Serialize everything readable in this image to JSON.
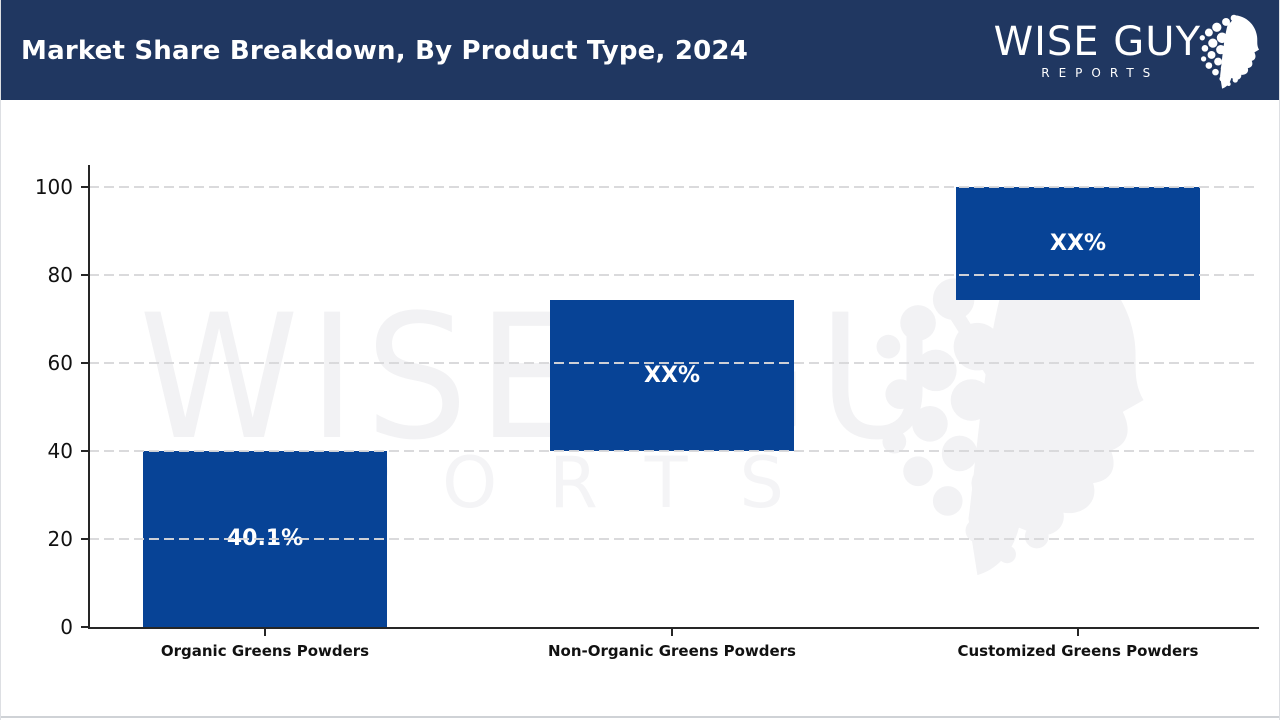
{
  "header": {
    "title": "Market Share Breakdown, By Product Type, 2024",
    "logo": {
      "line1": "WISE GUY",
      "line2": "REPORTS"
    }
  },
  "watermark": {
    "line1": "WISE GUY",
    "line2": "REPORTS"
  },
  "chart_data": {
    "type": "bar",
    "subtype": "stacked-waterfall-segments",
    "title": "Market Share Breakdown, By Product Type, 2024",
    "categories": [
      "Organic Greens Powders",
      "Non-Organic Greens Powders",
      "Customized Greens Powders"
    ],
    "segments": [
      {
        "category": "Organic Greens Powders",
        "start": 0,
        "end": 40.1,
        "label": "40.1%"
      },
      {
        "category": "Non-Organic Greens Powders",
        "start": 40.1,
        "end": 74.3,
        "label": "XX%"
      },
      {
        "category": "Customized Greens Powders",
        "start": 74.3,
        "end": 100,
        "label": "XX%"
      }
    ],
    "yticks": [
      0,
      20,
      40,
      60,
      80,
      100
    ],
    "ylim": [
      0,
      100
    ],
    "grid": "horizontal-dashed",
    "legend": "none",
    "xlabel": "",
    "ylabel": "",
    "bar_color": "#074396",
    "value_label_color": "#ffffff"
  },
  "colors": {
    "header_bg": "#203761",
    "bar": "#074396",
    "grid": "#d9d9d9",
    "axis": "#262626",
    "watermark": "#f2f2f4"
  }
}
